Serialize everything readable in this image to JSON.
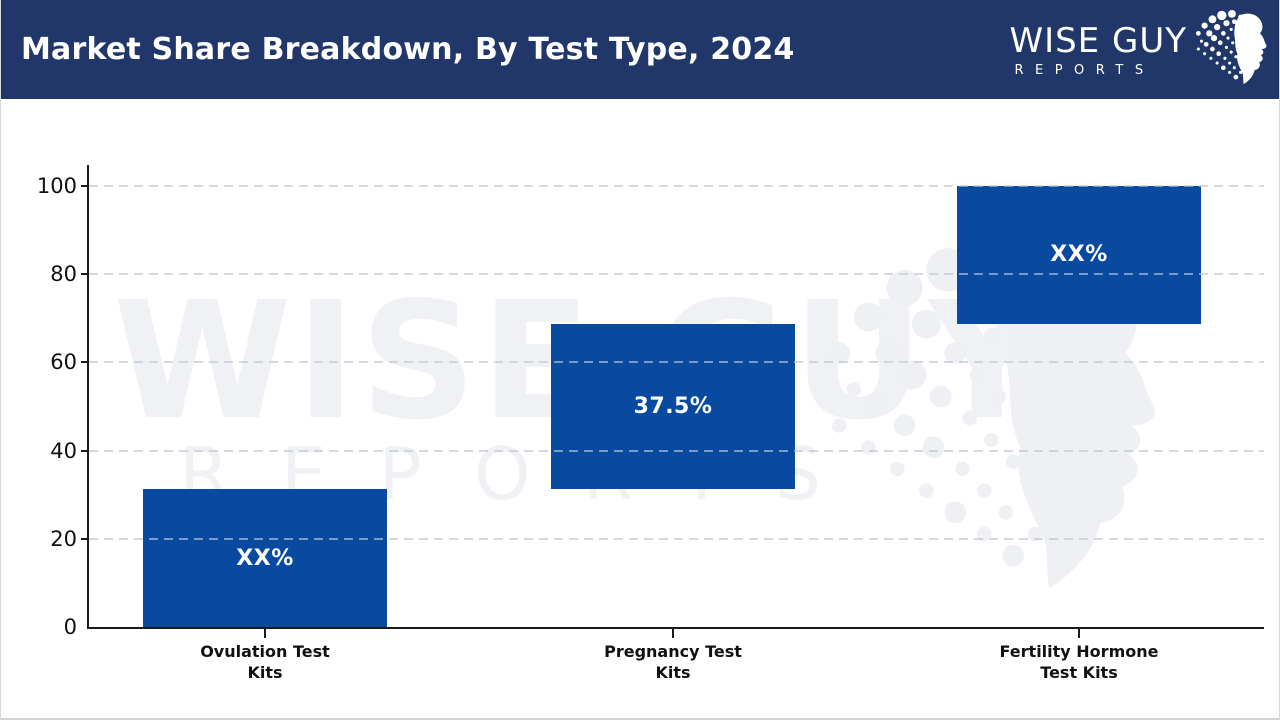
{
  "header": {
    "title": "Market Share Breakdown, By Test Type, 2024"
  },
  "logo": {
    "name": "WISE GUY",
    "sub": "REPORTS"
  },
  "watermark": {
    "name": "WISE GUY",
    "sub": "REPORTS"
  },
  "chart_data": {
    "type": "bar",
    "subtype": "floating-segment-waterfall",
    "title": "Market Share Breakdown, By Test Type, 2024",
    "categories": [
      "Ovulation Test Kits",
      "Pregnancy Test Kits",
      "Fertility Hormone Test Kits"
    ],
    "category_lines": [
      [
        "Ovulation Test",
        "Kits"
      ],
      [
        "Pregnancy Test",
        "Kits"
      ],
      [
        "Fertility Hormone",
        "Test Kits"
      ]
    ],
    "segments": [
      {
        "category": "Ovulation Test Kits",
        "start": 0,
        "end": 31.25,
        "label": "XX%"
      },
      {
        "category": "Pregnancy Test Kits",
        "start": 31.25,
        "end": 68.75,
        "label": "37.5%"
      },
      {
        "category": "Fertility Hormone Test Kits",
        "start": 68.75,
        "end": 100,
        "label": "XX%"
      }
    ],
    "xlabel": "",
    "ylabel": "",
    "ylim": [
      0,
      100
    ],
    "yticks": [
      0,
      20,
      40,
      60,
      80,
      100
    ],
    "grid": "horizontal dashed, drawn over bars",
    "legend": "none",
    "colors": {
      "bar": "#084a9f",
      "bar_label": "#ffffff",
      "grid": "#d3d3d3",
      "axis": "#1a1a1a",
      "header_bg": "#223769",
      "watermark": "#f0f1f4"
    }
  }
}
